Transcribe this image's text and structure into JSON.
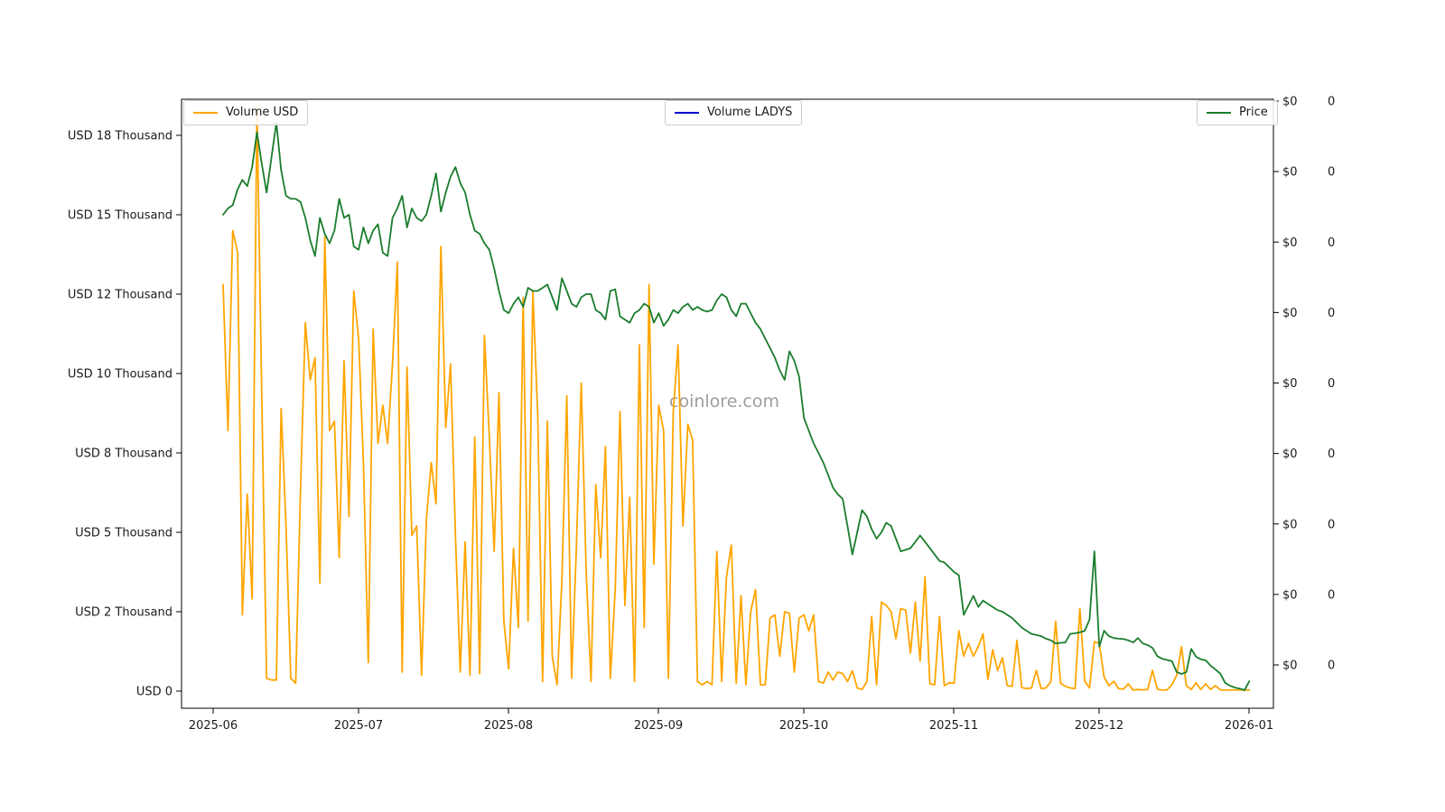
{
  "page": {
    "background": "#ffffff"
  },
  "watermark": {
    "text": "coinlore.com",
    "color": "#8c8c8c"
  },
  "legend": [
    {
      "label": "Volume USD",
      "color": "#FFA500"
    },
    {
      "label": "Volume LADYS",
      "color": "#0000CD"
    },
    {
      "label": "Price",
      "color": "#1A7D2C"
    }
  ],
  "chart_data": {
    "type": "line",
    "title": "",
    "watermark": "coinlore.com",
    "x_start_date": "2025-06-03",
    "x_interval_days": 1,
    "x_tick_labels": [
      "2025-06",
      "2025-07",
      "2025-08",
      "2025-09",
      "2025-10",
      "2025-11",
      "2025-12",
      "2026-01"
    ],
    "grid": false,
    "legend_position": "three boxes inside plot top: left, center, right",
    "y_left_axis": {
      "title": "",
      "tick_labels": [
        "USD 0",
        "USD 2 Thousand",
        "USD 5 Thousand",
        "USD 8 Thousand",
        "USD 10 Thousand",
        "USD 12 Thousand",
        "USD 15 Thousand",
        "USD 18 Thousand"
      ],
      "tick_values": [
        0,
        2500,
        5000,
        7500,
        10000,
        12500,
        15000,
        17500
      ],
      "range": [
        0,
        19200
      ]
    },
    "y_right_price_axis": {
      "tick_labels": [
        "$0",
        "$0",
        "$0",
        "$0",
        "$0",
        "$0",
        "$0",
        "$0",
        "$0"
      ],
      "note": "all price tick labels render as $0 (sub-cent token price)"
    },
    "y_right_volume_ladys_axis": {
      "tick_labels": [
        "0",
        "0",
        "0",
        "0",
        "0",
        "0",
        "0",
        "0",
        "0"
      ]
    },
    "series": [
      {
        "name": "Volume USD",
        "color": "#FFA500",
        "axis": "left",
        "unit": "USD",
        "values": [
          12800,
          8200,
          14500,
          13800,
          2400,
          6200,
          2900,
          18400,
          9200,
          400,
          350,
          350,
          8900,
          5200,
          400,
          250,
          6400,
          11600,
          9800,
          10500,
          3400,
          14300,
          8200,
          8500,
          4200,
          10400,
          5500,
          12600,
          11100,
          7200,
          900,
          11400,
          7800,
          9000,
          7800,
          10300,
          13500,
          600,
          10200,
          4900,
          5200,
          500,
          5400,
          7200,
          5900,
          14000,
          8300,
          10300,
          4900,
          600,
          4700,
          500,
          8000,
          550,
          11200,
          8000,
          4400,
          9400,
          2200,
          700,
          4500,
          2000,
          12400,
          2200,
          12600,
          8700,
          300,
          8500,
          1100,
          200,
          3500,
          9300,
          400,
          4600,
          9700,
          3800,
          300,
          6500,
          4200,
          7700,
          400,
          3200,
          8800,
          2700,
          6100,
          300,
          10900,
          2000,
          12800,
          4000,
          9000,
          8200,
          400,
          8800,
          10900,
          5200,
          8400,
          7900,
          300,
          200,
          300,
          200,
          4400,
          300,
          3600,
          4600,
          250,
          3000,
          200,
          2500,
          3200,
          200,
          200,
          2300,
          2400,
          1100,
          2500,
          2450,
          600,
          2300,
          2400,
          1900,
          2400,
          300,
          250,
          600,
          350,
          600,
          550,
          300,
          640,
          100,
          50,
          300,
          2350,
          200,
          2800,
          2700,
          2500,
          1650,
          2600,
          2550,
          1200,
          2800,
          950,
          3600,
          230,
          200,
          2350,
          170,
          260,
          250,
          1900,
          1100,
          1500,
          1100,
          1400,
          1800,
          370,
          1300,
          650,
          1050,
          170,
          150,
          1600,
          110,
          80,
          100,
          650,
          80,
          100,
          300,
          2200,
          250,
          150,
          100,
          80,
          2600,
          310,
          100,
          1560,
          1500,
          450,
          170,
          310,
          80,
          60,
          230,
          30,
          50,
          40,
          50,
          650,
          60,
          30,
          40,
          200,
          500,
          1400,
          170,
          50,
          260,
          50,
          230,
          50,
          170,
          40,
          30,
          40,
          30,
          40,
          30,
          30
        ]
      },
      {
        "name": "Volume LADYS",
        "color": "#0000CD",
        "axis": "right_volume_ladys",
        "visible_in_plot": false,
        "note": "line not visible in the image (values at 0, hidden behind Volume USD baseline)",
        "values": []
      },
      {
        "name": "Price",
        "color": "#1A7D2C",
        "axis": "right_price",
        "unit": "relative curve units (every price axis label displays $0, so absolute values are not readable from the image)",
        "values": [
          15000,
          15200,
          15300,
          15800,
          16100,
          15900,
          16500,
          17600,
          16600,
          15700,
          16800,
          17900,
          16400,
          15600,
          15500,
          15500,
          15400,
          14900,
          14200,
          13700,
          14900,
          14400,
          14100,
          14500,
          15500,
          14900,
          15000,
          14000,
          13900,
          14600,
          14100,
          14500,
          14700,
          13800,
          13700,
          14900,
          15200,
          15600,
          14600,
          15200,
          14900,
          14800,
          15000,
          15600,
          16300,
          15100,
          15700,
          16200,
          16500,
          16000,
          15700,
          15000,
          14500,
          14400,
          14100,
          13900,
          13300,
          12600,
          12000,
          11900,
          12200,
          12400,
          12100,
          12700,
          12600,
          12600,
          12700,
          12800,
          12400,
          12000,
          13000,
          12600,
          12200,
          12100,
          12400,
          12500,
          12500,
          12000,
          11900,
          11700,
          12600,
          12650,
          11800,
          11700,
          11600,
          11900,
          12000,
          12200,
          12100,
          11600,
          11900,
          11500,
          11700,
          12000,
          11900,
          12100,
          12200,
          12000,
          12100,
          12000,
          11950,
          12000,
          12300,
          12500,
          12400,
          12000,
          11800,
          12200,
          12200,
          11900,
          11600,
          11400,
          11100,
          10800,
          10500,
          10100,
          9800,
          10700,
          10400,
          9900,
          8600,
          8200,
          7800,
          7500,
          7200,
          6800,
          6400,
          6200,
          6050,
          5200,
          4300,
          5000,
          5700,
          5500,
          5100,
          4800,
          5000,
          5300,
          5200,
          4800,
          4400,
          4450,
          4500,
          4700,
          4900,
          4700,
          4500,
          4300,
          4100,
          4050,
          3900,
          3750,
          3650,
          2400,
          2700,
          3000,
          2650,
          2850,
          2750,
          2650,
          2550,
          2500,
          2400,
          2300,
          2150,
          2000,
          1900,
          1800,
          1770,
          1730,
          1650,
          1600,
          1500,
          1520,
          1530,
          1800,
          1820,
          1850,
          1900,
          2250,
          4400,
          1400,
          1900,
          1730,
          1670,
          1650,
          1640,
          1600,
          1530,
          1670,
          1500,
          1450,
          1360,
          1100,
          1020,
          980,
          940,
          600,
          540,
          600,
          1330,
          1080,
          1000,
          970,
          800,
          680,
          550,
          260,
          170,
          110,
          80,
          30,
          310
        ]
      }
    ]
  }
}
